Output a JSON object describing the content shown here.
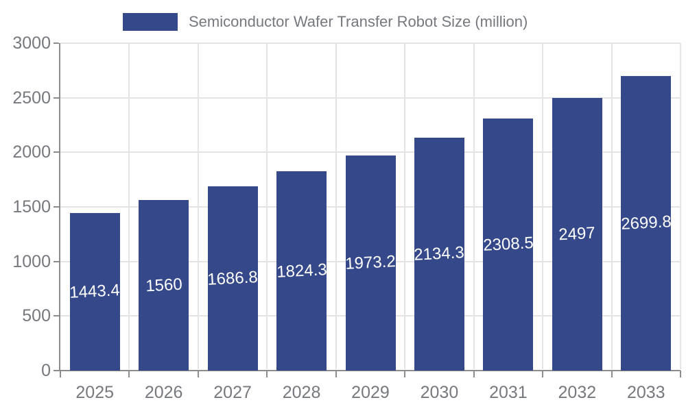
{
  "legend": {
    "label": "Semiconductor Wafer Transfer Robot Size (million)",
    "swatch_color": "#35498a"
  },
  "chart_data": {
    "type": "bar",
    "title": "Semiconductor Wafer Transfer Robot Size (million)",
    "categories": [
      "2025",
      "2026",
      "2027",
      "2028",
      "2029",
      "2030",
      "2031",
      "2032",
      "2033"
    ],
    "values": [
      1443.4,
      1560,
      1686.8,
      1824.3,
      1973.2,
      2134.3,
      2308.5,
      2497,
      2699.8
    ],
    "value_labels": [
      "1443.4",
      "1560",
      "1686.8",
      "1824.3",
      "1973.2",
      "2134.3",
      "2308.5",
      "2497",
      "2699.8"
    ],
    "xlabel": "",
    "ylabel": "",
    "ylim": [
      0,
      3000
    ],
    "yticks": [
      0,
      500,
      1000,
      1500,
      2000,
      2500,
      3000
    ],
    "grid": true,
    "legend_position": "top-center",
    "bar_color": "#35498a",
    "value_label_color": "#ffffff",
    "axis_text_color": "#75797e",
    "gridline_color": "#e4e4e4",
    "axis_line_color": "#8c8c8c"
  }
}
